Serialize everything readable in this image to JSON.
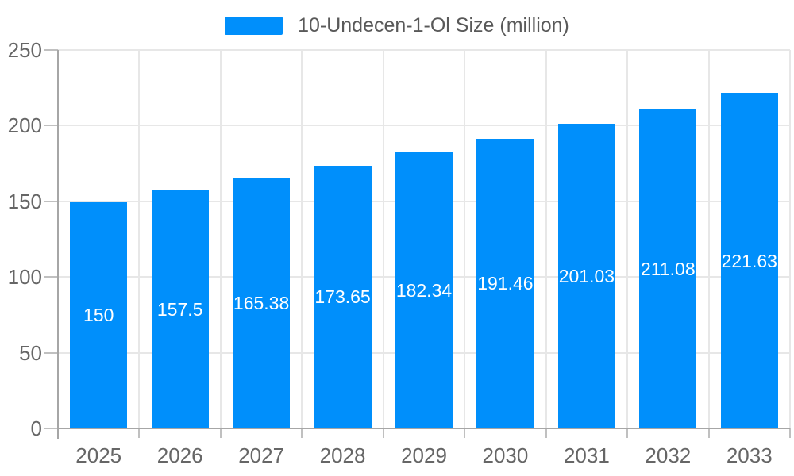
{
  "chart_data": {
    "type": "bar",
    "title": "10-Undecen-1-Ol Size (million)",
    "categories": [
      "2025",
      "2026",
      "2027",
      "2028",
      "2029",
      "2030",
      "2031",
      "2032",
      "2033"
    ],
    "series": [
      {
        "name": "10-Undecen-1-Ol Size (million)",
        "values": [
          150,
          157.5,
          165.38,
          173.65,
          182.34,
          191.46,
          201.03,
          211.08,
          221.63
        ]
      }
    ],
    "bar_labels": [
      "150",
      "157.5",
      "165.38",
      "173.65",
      "182.34",
      "191.46",
      "201.03",
      "211.08",
      "221.63"
    ],
    "xlabel": "",
    "ylabel": "",
    "ylim": [
      0,
      250
    ],
    "yticks": [
      0,
      50,
      100,
      150,
      200,
      250
    ],
    "grid": "on",
    "legend_position": "top",
    "colors": {
      "bar": "#008FFB",
      "grid": "#e7e7e7",
      "axis": "#a6a6a6",
      "tick": "#c0c0c0",
      "label_text": "#666666",
      "legend_text": "#595959",
      "bar_label_text": "#ffffff"
    }
  }
}
